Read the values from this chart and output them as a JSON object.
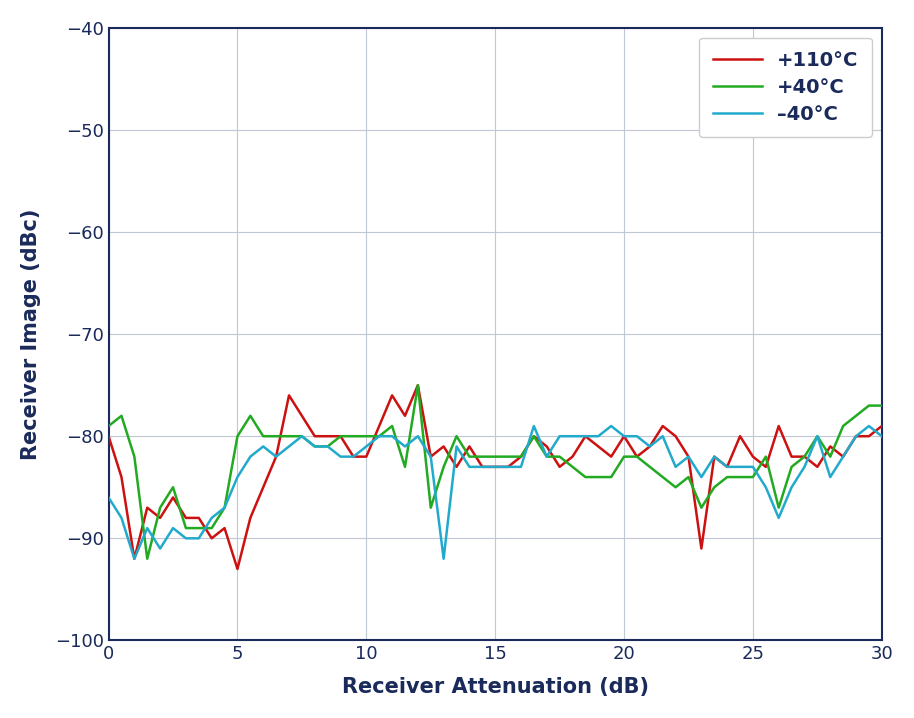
{
  "title": "",
  "xlabel": "Receiver Attenuation (dB)",
  "ylabel": "Receiver Image (dBc)",
  "xlim": [
    0,
    30
  ],
  "ylim": [
    -100,
    -40
  ],
  "xticks": [
    0,
    5,
    10,
    15,
    20,
    25,
    30
  ],
  "yticks": [
    -100,
    -90,
    -80,
    -70,
    -60,
    -50,
    -40
  ],
  "legend_labels": [
    "+110°C",
    "+40°C",
    "–40°C"
  ],
  "line_colors": [
    "#cc1111",
    "#22aa22",
    "#22aacc"
  ],
  "line_width": 1.8,
  "background_color": "#ffffff",
  "grid_color": "#c0c8d8",
  "axis_color": "#1a2a5a",
  "label_color": "#1a2a5a",
  "legend_text_color": "#1a2a5a",
  "x_red": [
    0,
    0.5,
    1,
    1.5,
    2,
    2.5,
    3,
    3.5,
    4,
    4.5,
    5,
    5.5,
    6,
    6.5,
    7,
    7.5,
    8,
    8.5,
    9,
    9.5,
    10,
    10.5,
    11,
    11.5,
    12,
    12.5,
    13,
    13.5,
    14,
    14.5,
    15,
    15.5,
    16,
    16.5,
    17,
    17.5,
    18,
    18.5,
    19,
    19.5,
    20,
    20.5,
    21,
    21.5,
    22,
    22.5,
    23,
    23.5,
    24,
    24.5,
    25,
    25.5,
    26,
    26.5,
    27,
    27.5,
    28,
    28.5,
    29,
    29.5,
    30
  ],
  "y_red": [
    -80,
    -84,
    -92,
    -87,
    -88,
    -86,
    -88,
    -88,
    -90,
    -89,
    -93,
    -88,
    -85,
    -82,
    -76,
    -78,
    -80,
    -80,
    -80,
    -82,
    -82,
    -79,
    -76,
    -78,
    -75,
    -82,
    -81,
    -83,
    -81,
    -83,
    -83,
    -83,
    -82,
    -80,
    -81,
    -83,
    -82,
    -80,
    -81,
    -82,
    -80,
    -82,
    -81,
    -79,
    -80,
    -82,
    -91,
    -82,
    -83,
    -80,
    -82,
    -83,
    -79,
    -82,
    -82,
    -83,
    -81,
    -82,
    -80,
    -80,
    -79
  ],
  "x_green": [
    0,
    0.5,
    1,
    1.5,
    2,
    2.5,
    3,
    3.5,
    4,
    4.5,
    5,
    5.5,
    6,
    6.5,
    7,
    7.5,
    8,
    8.5,
    9,
    9.5,
    10,
    10.5,
    11,
    11.5,
    12,
    12.5,
    13,
    13.5,
    14,
    14.5,
    15,
    15.5,
    16,
    16.5,
    17,
    17.5,
    18,
    18.5,
    19,
    19.5,
    20,
    20.5,
    21,
    21.5,
    22,
    22.5,
    23,
    23.5,
    24,
    24.5,
    25,
    25.5,
    26,
    26.5,
    27,
    27.5,
    28,
    28.5,
    29,
    29.5,
    30
  ],
  "y_green": [
    -79,
    -78,
    -82,
    -92,
    -87,
    -85,
    -89,
    -89,
    -89,
    -87,
    -80,
    -78,
    -80,
    -80,
    -80,
    -80,
    -81,
    -81,
    -80,
    -80,
    -80,
    -80,
    -79,
    -83,
    -75,
    -87,
    -83,
    -80,
    -82,
    -82,
    -82,
    -82,
    -82,
    -80,
    -82,
    -82,
    -83,
    -84,
    -84,
    -84,
    -82,
    -82,
    -83,
    -84,
    -85,
    -84,
    -87,
    -85,
    -84,
    -84,
    -84,
    -82,
    -87,
    -83,
    -82,
    -80,
    -82,
    -79,
    -78,
    -77,
    -77
  ],
  "x_cyan": [
    0,
    0.5,
    1,
    1.5,
    2,
    2.5,
    3,
    3.5,
    4,
    4.5,
    5,
    5.5,
    6,
    6.5,
    7,
    7.5,
    8,
    8.5,
    9,
    9.5,
    10,
    10.5,
    11,
    11.5,
    12,
    12.5,
    13,
    13.5,
    14,
    14.5,
    15,
    15.5,
    16,
    16.5,
    17,
    17.5,
    18,
    18.5,
    19,
    19.5,
    20,
    20.5,
    21,
    21.5,
    22,
    22.5,
    23,
    23.5,
    24,
    24.5,
    25,
    25.5,
    26,
    26.5,
    27,
    27.5,
    28,
    28.5,
    29,
    29.5,
    30
  ],
  "y_cyan": [
    -86,
    -88,
    -92,
    -89,
    -91,
    -89,
    -90,
    -90,
    -88,
    -87,
    -84,
    -82,
    -81,
    -82,
    -81,
    -80,
    -81,
    -81,
    -82,
    -82,
    -81,
    -80,
    -80,
    -81,
    -80,
    -82,
    -92,
    -81,
    -83,
    -83,
    -83,
    -83,
    -83,
    -79,
    -82,
    -80,
    -80,
    -80,
    -80,
    -79,
    -80,
    -80,
    -81,
    -80,
    -83,
    -82,
    -84,
    -82,
    -83,
    -83,
    -83,
    -85,
    -88,
    -85,
    -83,
    -80,
    -84,
    -82,
    -80,
    -79,
    -80
  ]
}
